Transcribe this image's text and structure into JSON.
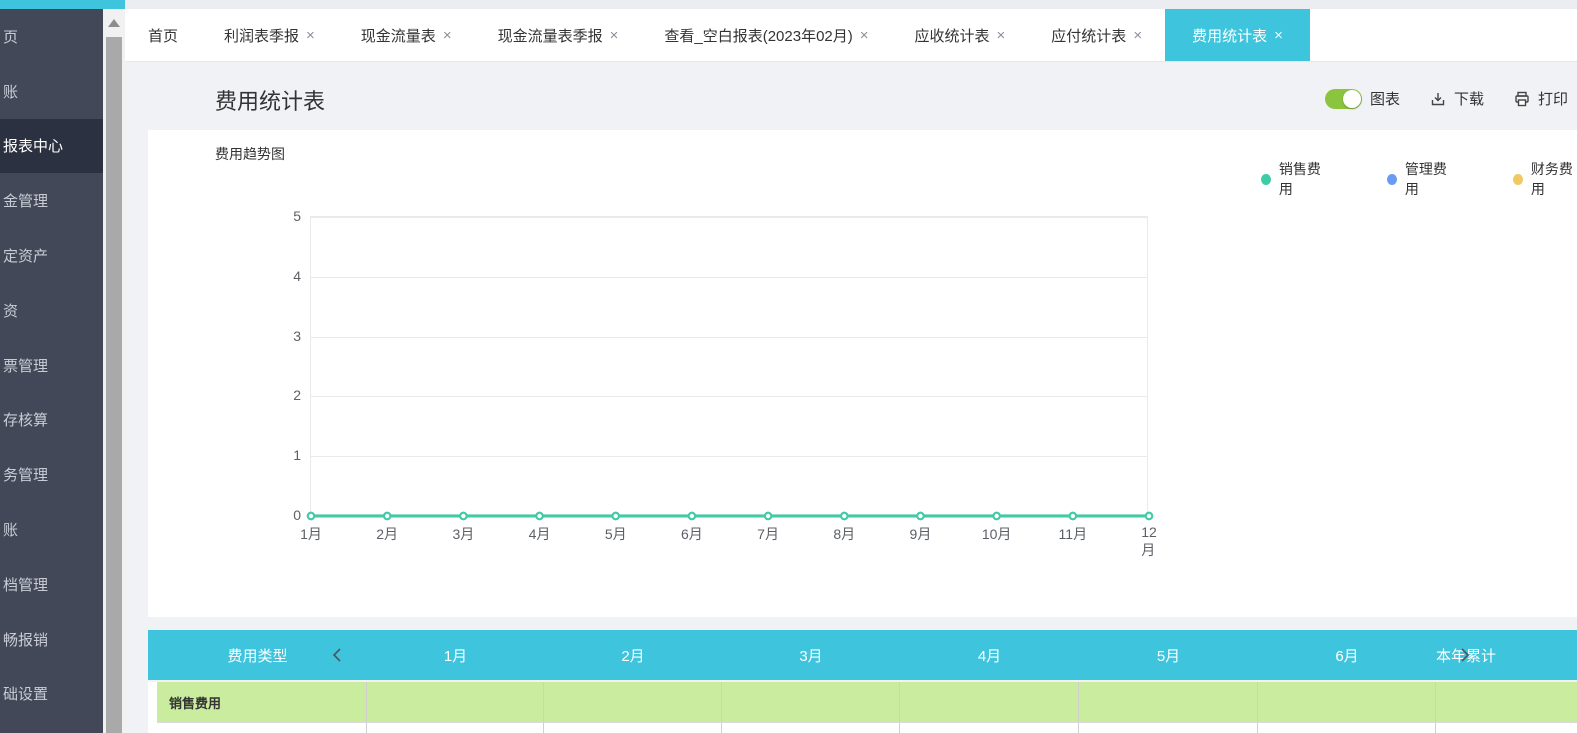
{
  "sidebar": {
    "items": [
      {
        "label": "页",
        "active": false
      },
      {
        "label": "账",
        "active": false
      },
      {
        "label": "报表中心",
        "active": true
      },
      {
        "label": "金管理",
        "active": false
      },
      {
        "label": "定资产",
        "active": false
      },
      {
        "label": "资",
        "active": false
      },
      {
        "label": "票管理",
        "active": false
      },
      {
        "label": "存核算",
        "active": false
      },
      {
        "label": "务管理",
        "active": false
      },
      {
        "label": "账",
        "active": false
      },
      {
        "label": "档管理",
        "active": false
      },
      {
        "label": "畅报销",
        "active": false
      },
      {
        "label": "础设置",
        "active": false
      }
    ]
  },
  "tabs": {
    "close_glyph": "×",
    "items": [
      {
        "label": "首页",
        "closable": false,
        "active": false
      },
      {
        "label": "利润表季报",
        "closable": true,
        "active": false
      },
      {
        "label": "现金流量表",
        "closable": true,
        "active": false
      },
      {
        "label": "现金流量表季报",
        "closable": true,
        "active": false
      },
      {
        "label": "查看_空白报表(2023年02月)",
        "closable": true,
        "active": false
      },
      {
        "label": "应收统计表",
        "closable": true,
        "active": false
      },
      {
        "label": "应付统计表",
        "closable": true,
        "active": false
      },
      {
        "label": "费用统计表",
        "closable": true,
        "active": true
      }
    ]
  },
  "page": {
    "title": "费用统计表",
    "toolbar": {
      "chart_toggle_label": "图表",
      "toggle_on": true,
      "download_label": "下载",
      "print_label": "打印"
    }
  },
  "chart_panel": {
    "title": "费用趋势图",
    "legend": [
      {
        "label": "销售费用",
        "color": "#3dcca6"
      },
      {
        "label": "管理费用",
        "color": "#6a9bf2"
      },
      {
        "label": "财务费用",
        "color": "#f2c862"
      }
    ]
  },
  "chart_data": {
    "type": "line",
    "title": "费用趋势图",
    "x": [
      "1月",
      "2月",
      "3月",
      "4月",
      "5月",
      "6月",
      "7月",
      "8月",
      "9月",
      "10月",
      "11月",
      "12月"
    ],
    "series": [
      {
        "name": "销售费用",
        "color": "#3dcca6",
        "values": [
          0,
          0,
          0,
          0,
          0,
          0,
          0,
          0,
          0,
          0,
          0,
          0
        ]
      },
      {
        "name": "管理费用",
        "color": "#6a9bf2",
        "values": [
          0,
          0,
          0,
          0,
          0,
          0,
          0,
          0,
          0,
          0,
          0,
          0
        ]
      },
      {
        "name": "财务费用",
        "color": "#f2c862",
        "values": [
          0,
          0,
          0,
          0,
          0,
          0,
          0,
          0,
          0,
          0,
          0,
          0
        ]
      }
    ],
    "ylim": [
      0,
      5
    ],
    "yticks": [
      0,
      1,
      2,
      3,
      4,
      5
    ],
    "grid": true,
    "legend_position": "top-right"
  },
  "table": {
    "columns": [
      "费用类型",
      "1月",
      "2月",
      "3月",
      "4月",
      "5月",
      "6月",
      "本年累计"
    ],
    "pagination": {
      "prev": "‹",
      "next": "›"
    },
    "rows": [
      {
        "cells": [
          "销售费用",
          "",
          "",
          "",
          "",
          "",
          "",
          ""
        ]
      },
      {
        "cells": [
          "",
          "",
          "",
          "",
          "",
          "",
          "",
          ""
        ]
      }
    ]
  },
  "colors": {
    "accent_cyan": "#3ec4dc",
    "sidebar_bg": "#424857",
    "sidebar_active_bg": "#2b3140",
    "toggle_green": "#8bc53f",
    "row_green": "#c9ec9e",
    "content_bg": "#f0f2f5"
  }
}
